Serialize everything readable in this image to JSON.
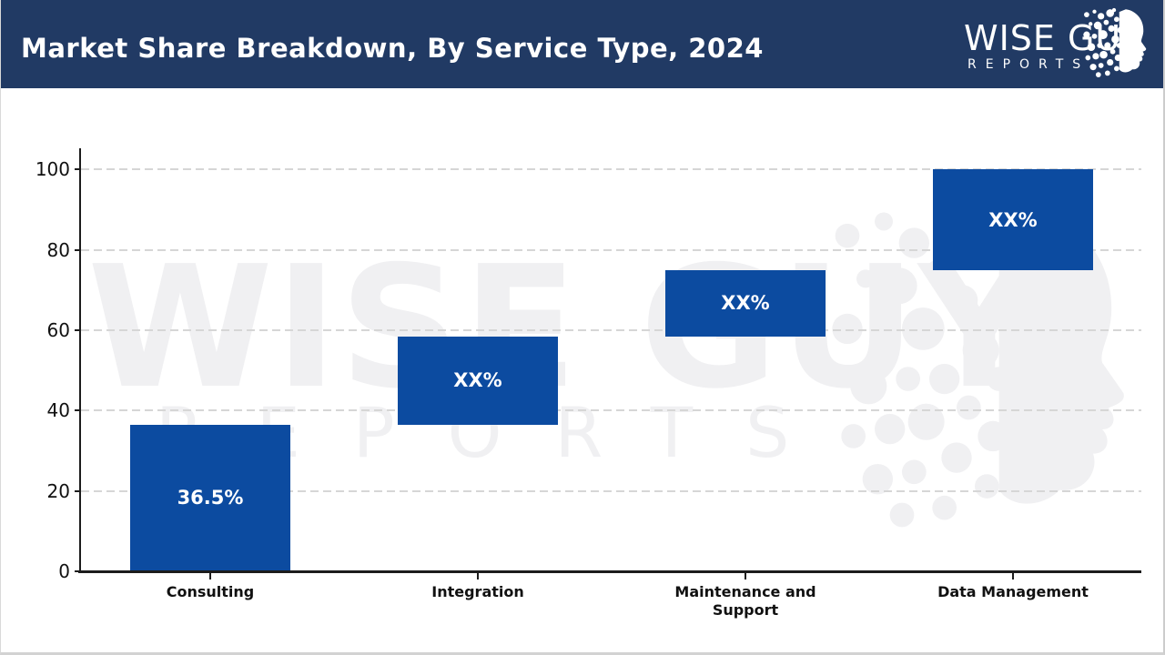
{
  "header": {
    "title": "Market Share Breakdown, By Service Type, 2024",
    "logo": {
      "primary": "WISE GUY",
      "secondary": "REPORTS"
    },
    "bg_color": "#213A64"
  },
  "watermark": {
    "line1": "WISE GUY",
    "line2": "REPORTS"
  },
  "chart_data": {
    "type": "bar",
    "subtype": "waterfall",
    "title": "Market Share Breakdown, By Service Type, 2024",
    "categories": [
      "Consulting",
      "Integration",
      "Maintenance and Support",
      "Data Management"
    ],
    "category_lines": [
      [
        "Consulting"
      ],
      [
        "Integration"
      ],
      [
        "Maintenance and",
        "Support"
      ],
      [
        "Data Management"
      ]
    ],
    "segments": [
      {
        "category": "Consulting",
        "start": 0,
        "end": 36.5,
        "delta": 36.5,
        "label": "36.5%"
      },
      {
        "category": "Integration",
        "start": 36.5,
        "end": 58.5,
        "delta": 22,
        "label": "XX%"
      },
      {
        "category": "Maintenance and Support",
        "start": 58.5,
        "end": 75,
        "delta": 16.5,
        "label": "XX%"
      },
      {
        "category": "Data Management",
        "start": 75,
        "end": 100,
        "delta": 25,
        "label": "XX%"
      }
    ],
    "xlabel": "",
    "ylabel": "",
    "yticks": [
      0,
      20,
      40,
      60,
      80,
      100
    ],
    "ylim": [
      0,
      105
    ],
    "grid": "horizontal-dashed",
    "legend": "none",
    "bar_color": "#0C4BA0",
    "value_label_color": "#ffffff"
  }
}
